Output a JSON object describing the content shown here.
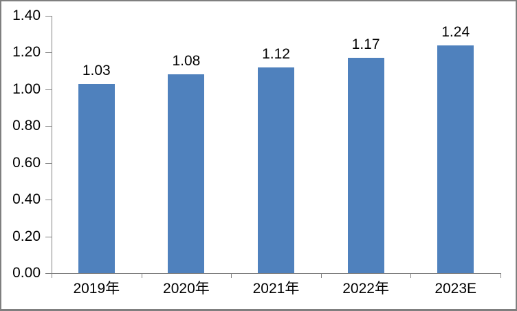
{
  "chart_data": {
    "type": "bar",
    "categories": [
      "2019年",
      "2020年",
      "2021年",
      "2022年",
      "2023E"
    ],
    "values": [
      1.03,
      1.08,
      1.12,
      1.17,
      1.24
    ],
    "value_labels": [
      "1.03",
      "1.08",
      "1.12",
      "1.17",
      "1.24"
    ],
    "title": "",
    "xlabel": "",
    "ylabel": "",
    "ylim": [
      0.0,
      1.4
    ],
    "y_ticks": [
      0.0,
      0.2,
      0.4,
      0.6,
      0.8,
      1.0,
      1.2,
      1.4
    ],
    "y_tick_labels": [
      "0.00",
      "0.20",
      "0.40",
      "0.60",
      "0.80",
      "1.00",
      "1.20",
      "1.40"
    ],
    "grid": false,
    "legend": null,
    "colors": {
      "bar_fill": "#4F81BD",
      "axis_line": "#808080",
      "text": "#000000",
      "background": "#FFFFFF",
      "chart_border": "#7F7F7F"
    }
  }
}
